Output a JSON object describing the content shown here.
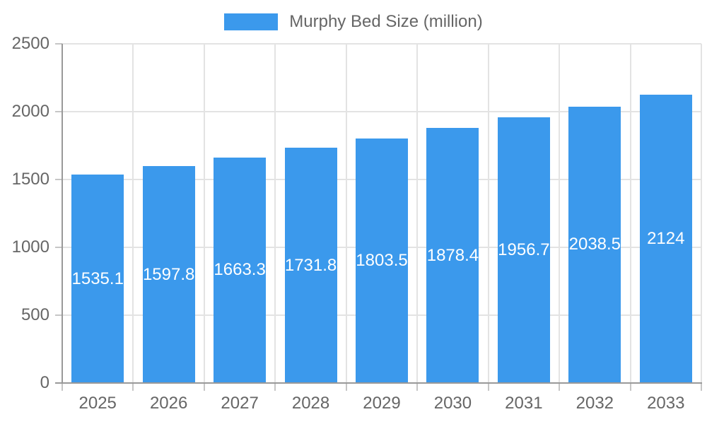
{
  "legend": {
    "label": "Murphy Bed Size (million)"
  },
  "chart_data": {
    "type": "bar",
    "title": "Murphy Bed Size (million)",
    "categories": [
      "2025",
      "2026",
      "2027",
      "2028",
      "2029",
      "2030",
      "2031",
      "2032",
      "2033"
    ],
    "series": [
      {
        "name": "Murphy Bed Size (million)",
        "values": [
          1535.1,
          1597.8,
          1663.3,
          1731.8,
          1803.5,
          1878.4,
          1956.7,
          2038.5,
          2124
        ]
      }
    ],
    "data_labels": [
      "1535.1",
      "1597.8",
      "1663.3",
      "1731.8",
      "1803.5",
      "1878.4",
      "1956.7",
      "2038.5",
      "2124"
    ],
    "xlabel": "",
    "ylabel": "",
    "ylim": [
      0,
      2500
    ],
    "yticks": [
      0,
      500,
      1000,
      1500,
      2000,
      2500
    ],
    "grid": true,
    "legend_position": "top"
  },
  "colors": {
    "bar": "#3b99ec",
    "axis": "#999999",
    "grid": "#e3e3e3",
    "tick": "#c6c6c6",
    "axis_text": "#666666",
    "bar_label_text": "#ffffff",
    "background": "#ffffff"
  }
}
